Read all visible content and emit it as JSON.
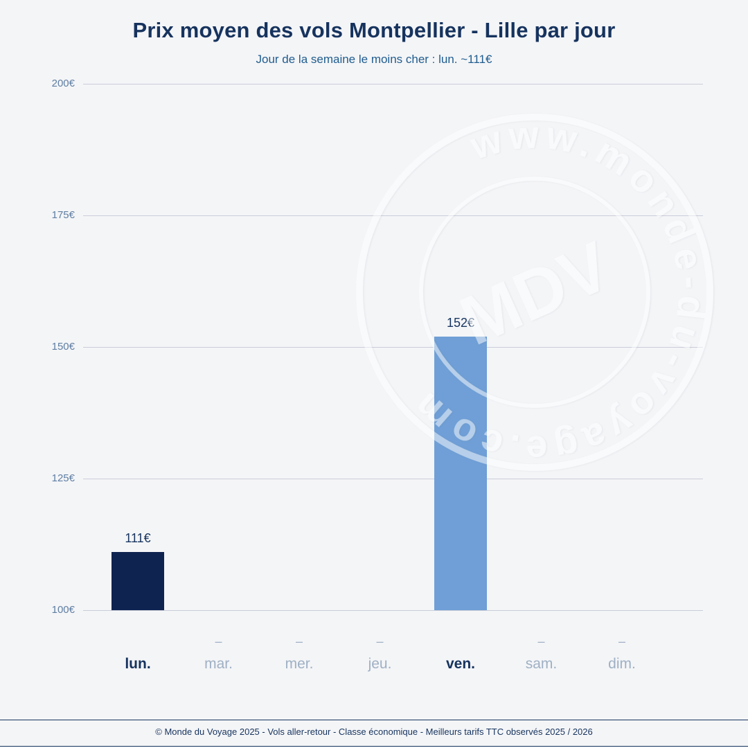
{
  "title": "Prix moyen des vols Montpellier - Lille par jour",
  "subtitle": "Jour de la semaine le moins cher : lun. ~111€",
  "watermark": {
    "ring_text": "www.monde-du-voyage.com",
    "center_text": "MDV"
  },
  "footer": {
    "text": "© Monde du Voyage 2025 - Vols aller-retour - Classe économique - Meilleurs tarifs TTC observés 2025 / 2026"
  },
  "colors": {
    "title": "#16335e",
    "subtitle": "#1f5c8f",
    "bar_min": "#0f2350",
    "bar_other": "#6f9fd6",
    "grid": "#c9cdd9",
    "y_tick": "#5e7ea3",
    "day_active": "#16335e",
    "day_inactive": "#9fb0c4",
    "footer_line": "#16335e"
  },
  "chart_data": {
    "type": "bar",
    "title": "Prix moyen des vols Montpellier - Lille par jour",
    "subtitle": "Jour de la semaine le moins cher : lun. ~111€",
    "categories": [
      "lun.",
      "mar.",
      "mer.",
      "jeu.",
      "ven.",
      "sam.",
      "dim."
    ],
    "values": [
      111,
      null,
      null,
      null,
      152,
      null,
      null
    ],
    "currency": "€",
    "ylim": [
      100,
      200
    ],
    "yticks": [
      100,
      125,
      150,
      175,
      200
    ],
    "grid": true,
    "legend": "none",
    "highlight_category": "lun.",
    "no_data_marker": "–"
  }
}
